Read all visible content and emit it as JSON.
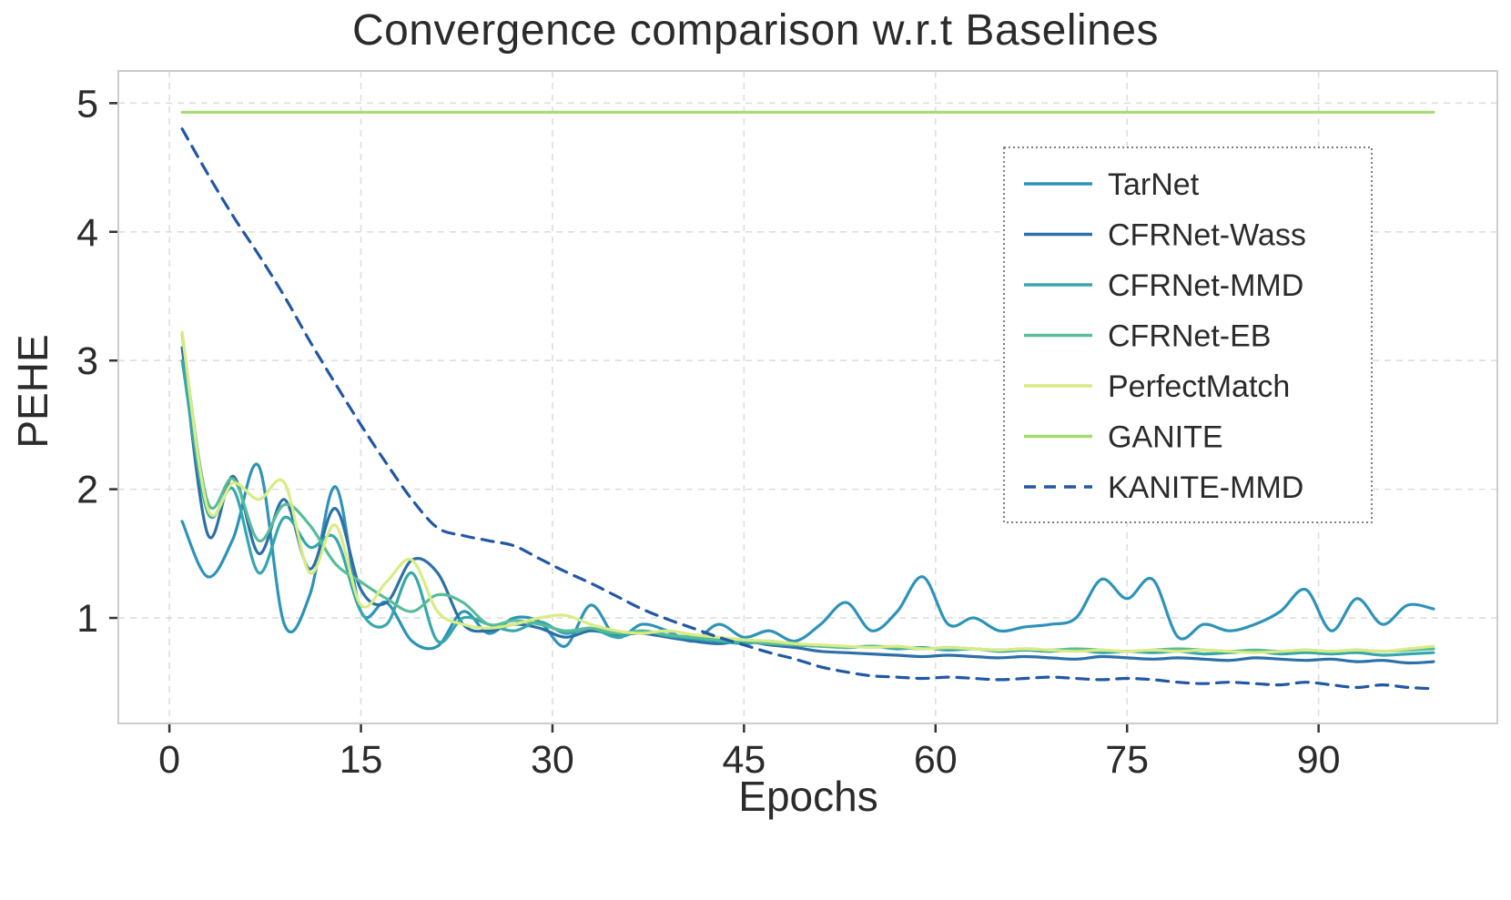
{
  "chart_data": {
    "type": "line",
    "title": "Convergence comparison w.r.t Baselines",
    "xlabel": "Epochs",
    "ylabel": "PEHE",
    "xlim": [
      -4,
      104
    ],
    "ylim": [
      0.18,
      5.25
    ],
    "xticks": [
      0,
      15,
      30,
      45,
      60,
      75,
      90
    ],
    "yticks": [
      1,
      2,
      3,
      4,
      5
    ],
    "grid": true,
    "legend_position": "upper right",
    "x": [
      1,
      3,
      5,
      7,
      9,
      11,
      13,
      15,
      17,
      19,
      21,
      23,
      25,
      27,
      29,
      31,
      33,
      35,
      37,
      39,
      41,
      43,
      45,
      47,
      49,
      51,
      53,
      55,
      57,
      59,
      61,
      63,
      65,
      67,
      69,
      71,
      73,
      75,
      77,
      79,
      81,
      83,
      85,
      87,
      89,
      91,
      93,
      95,
      97,
      99
    ],
    "series": [
      {
        "name": "TarNet",
        "color": "#2d93b8",
        "dash": false,
        "values": [
          1.75,
          1.32,
          1.62,
          2.18,
          0.95,
          1.18,
          2.02,
          1.05,
          1.12,
          0.82,
          0.78,
          1.05,
          0.88,
          1.0,
          0.97,
          0.78,
          1.1,
          0.85,
          0.95,
          0.9,
          0.82,
          0.95,
          0.85,
          0.9,
          0.82,
          0.95,
          1.12,
          0.9,
          1.05,
          1.32,
          0.95,
          1.0,
          0.9,
          0.93,
          0.95,
          1.0,
          1.3,
          1.15,
          1.3,
          0.85,
          0.95,
          0.9,
          0.95,
          1.05,
          1.22,
          0.9,
          1.15,
          0.95,
          1.1,
          1.07
        ]
      },
      {
        "name": "CFRNet-Wass",
        "color": "#2d6fa8",
        "dash": false,
        "values": [
          3.1,
          1.65,
          2.1,
          1.5,
          1.92,
          1.38,
          1.85,
          1.22,
          1.12,
          1.45,
          1.35,
          0.95,
          0.9,
          0.95,
          0.92,
          0.85,
          0.9,
          0.87,
          0.88,
          0.85,
          0.82,
          0.8,
          0.82,
          0.79,
          0.77,
          0.74,
          0.73,
          0.72,
          0.71,
          0.7,
          0.71,
          0.7,
          0.69,
          0.7,
          0.69,
          0.68,
          0.7,
          0.69,
          0.68,
          0.69,
          0.68,
          0.67,
          0.69,
          0.68,
          0.67,
          0.68,
          0.66,
          0.67,
          0.65,
          0.66
        ]
      },
      {
        "name": "CFRNet-MMD",
        "color": "#35a7ad",
        "dash": false,
        "values": [
          3.0,
          1.82,
          2.0,
          1.35,
          1.78,
          1.55,
          1.62,
          1.05,
          0.95,
          1.35,
          0.82,
          1.0,
          0.95,
          0.9,
          0.97,
          0.88,
          0.92,
          0.85,
          0.9,
          0.86,
          0.84,
          0.82,
          0.8,
          0.82,
          0.79,
          0.78,
          0.77,
          0.78,
          0.76,
          0.77,
          0.75,
          0.76,
          0.74,
          0.75,
          0.74,
          0.75,
          0.73,
          0.74,
          0.73,
          0.74,
          0.72,
          0.73,
          0.74,
          0.72,
          0.73,
          0.72,
          0.73,
          0.71,
          0.72,
          0.73
        ]
      },
      {
        "name": "CFRNet-EB",
        "color": "#59bc98",
        "dash": false,
        "values": [
          3.2,
          1.9,
          2.08,
          1.6,
          1.88,
          1.72,
          1.42,
          1.28,
          1.15,
          1.05,
          1.18,
          1.12,
          0.95,
          0.98,
          0.95,
          0.9,
          0.92,
          0.88,
          0.9,
          0.87,
          0.85,
          0.83,
          0.82,
          0.8,
          0.79,
          0.78,
          0.77,
          0.78,
          0.77,
          0.76,
          0.77,
          0.76,
          0.75,
          0.76,
          0.75,
          0.76,
          0.75,
          0.74,
          0.75,
          0.76,
          0.75,
          0.74,
          0.75,
          0.74,
          0.75,
          0.74,
          0.75,
          0.74,
          0.75,
          0.76
        ]
      },
      {
        "name": "PerfectMatch",
        "color": "#d9ec83",
        "dash": false,
        "values": [
          3.22,
          1.85,
          2.05,
          1.92,
          2.05,
          1.35,
          1.72,
          1.1,
          1.28,
          1.45,
          1.05,
          0.95,
          0.92,
          0.95,
          1.0,
          1.02,
          0.95,
          0.9,
          0.88,
          0.9,
          0.87,
          0.85,
          0.83,
          0.82,
          0.8,
          0.79,
          0.78,
          0.77,
          0.78,
          0.76,
          0.77,
          0.76,
          0.75,
          0.76,
          0.75,
          0.74,
          0.75,
          0.74,
          0.75,
          0.74,
          0.75,
          0.74,
          0.73,
          0.74,
          0.75,
          0.74,
          0.75,
          0.74,
          0.76,
          0.78
        ]
      },
      {
        "name": "GANITE",
        "color": "#a3dc71",
        "dash": false,
        "values": [
          4.93,
          4.93,
          4.93,
          4.93,
          4.93,
          4.93,
          4.93,
          4.93,
          4.93,
          4.93,
          4.93,
          4.93,
          4.93,
          4.93,
          4.93,
          4.93,
          4.93,
          4.93,
          4.93,
          4.93,
          4.93,
          4.93,
          4.93,
          4.93,
          4.93,
          4.93,
          4.93,
          4.93,
          4.93,
          4.93,
          4.93,
          4.93,
          4.93,
          4.93,
          4.93,
          4.93,
          4.93,
          4.93,
          4.93,
          4.93,
          4.93,
          4.93,
          4.93,
          4.93,
          4.93,
          4.93,
          4.93,
          4.93,
          4.93,
          4.93
        ]
      },
      {
        "name": "KANITE-MMD",
        "color": "#2257a5",
        "dash": true,
        "values": [
          4.8,
          4.45,
          4.12,
          3.82,
          3.5,
          3.15,
          2.82,
          2.5,
          2.2,
          1.92,
          1.7,
          1.64,
          1.6,
          1.56,
          1.46,
          1.36,
          1.27,
          1.17,
          1.07,
          0.99,
          0.92,
          0.85,
          0.79,
          0.73,
          0.68,
          0.62,
          0.58,
          0.55,
          0.54,
          0.53,
          0.54,
          0.53,
          0.52,
          0.53,
          0.54,
          0.53,
          0.52,
          0.53,
          0.52,
          0.5,
          0.49,
          0.5,
          0.49,
          0.48,
          0.5,
          0.48,
          0.46,
          0.48,
          0.46,
          0.45
        ]
      }
    ]
  }
}
